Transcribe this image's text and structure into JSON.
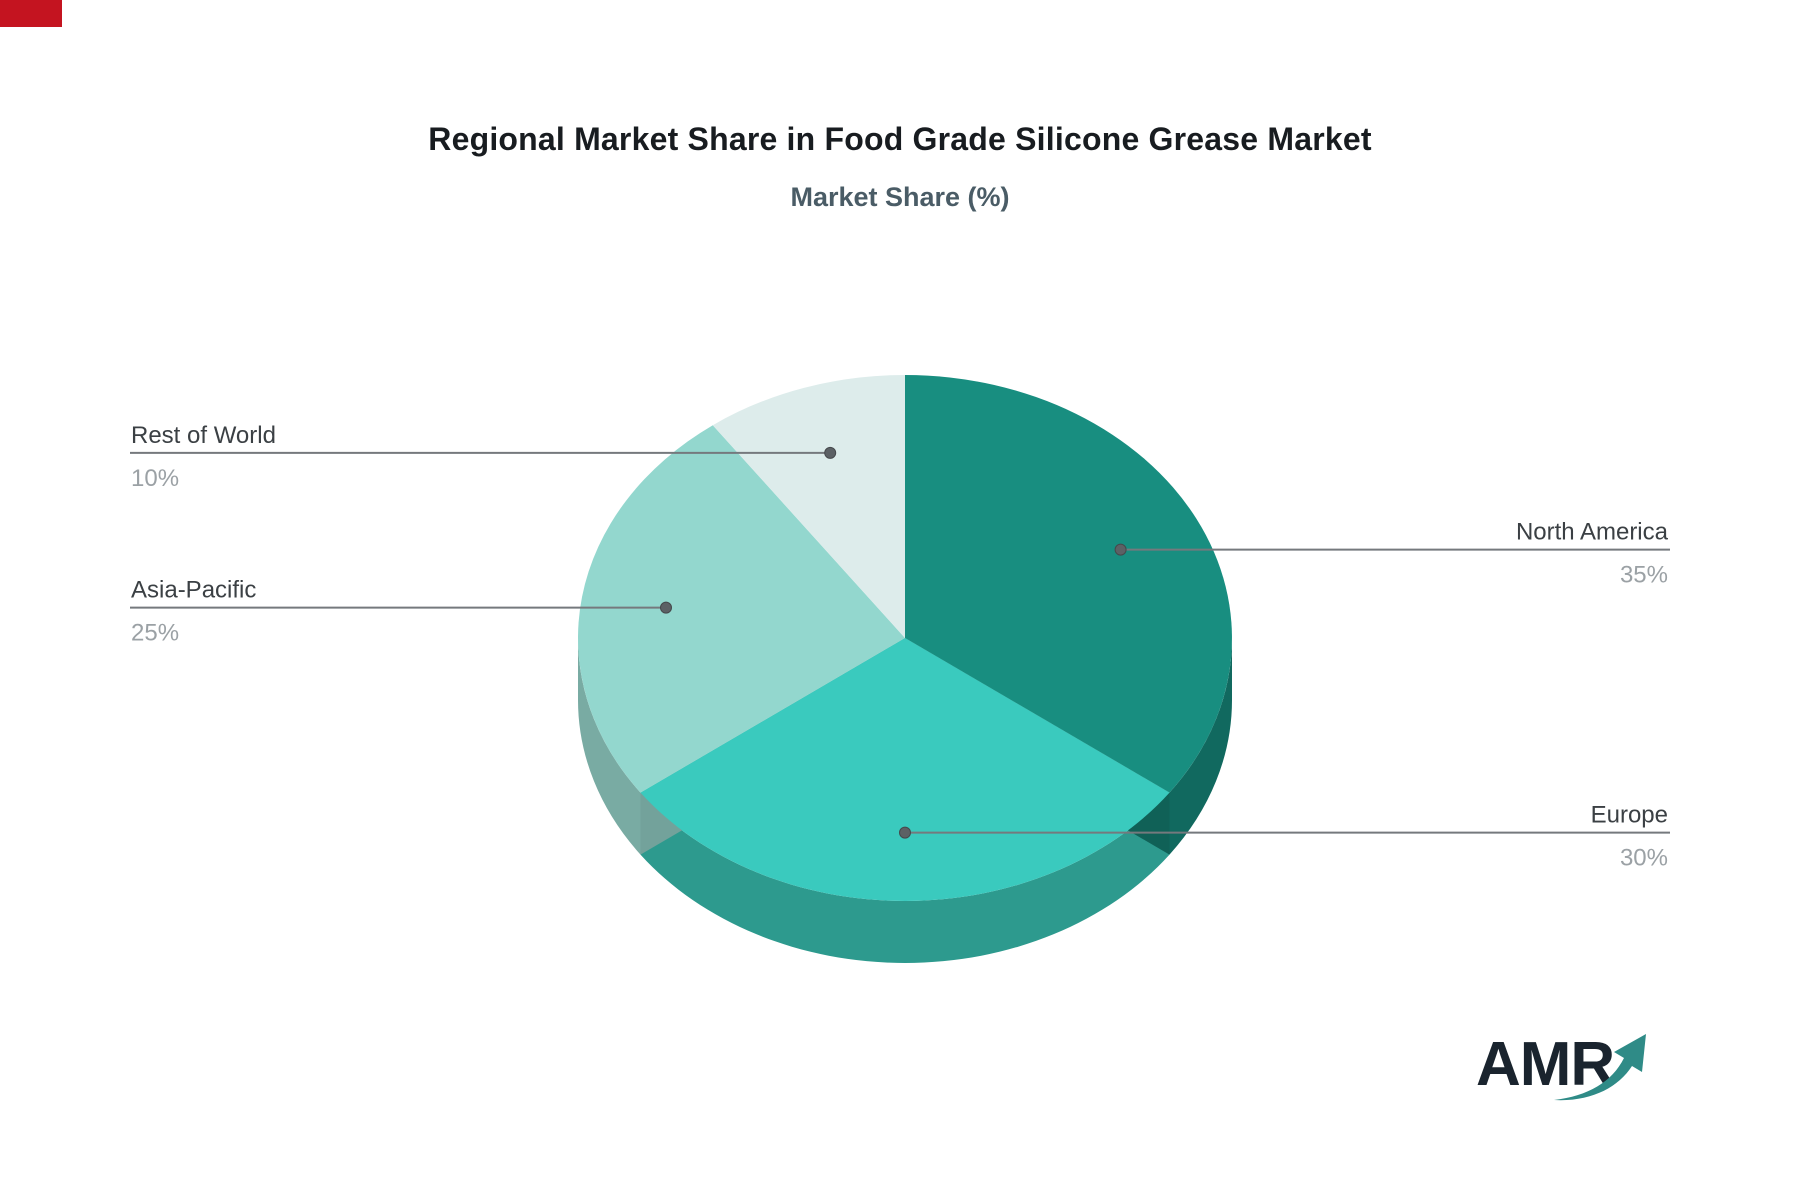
{
  "header": {
    "title": "Regional Market Share in Food Grade Silicone Grease Market",
    "subtitle": "Market Share (%)"
  },
  "chart_data": {
    "type": "pie",
    "style": "3d",
    "start_angle_deg": 0,
    "direction": "clockwise",
    "labels": [
      "North America",
      "Europe",
      "Asia-Pacific",
      "Rest of World"
    ],
    "values": [
      35,
      30,
      25,
      10
    ],
    "value_labels": [
      "35%",
      "30%",
      "25%",
      "10%"
    ],
    "colors": [
      "#188e80",
      "#3acabe",
      "#93d7ce",
      "#ddeceb"
    ],
    "side_colors": [
      "#11695f",
      "#2d9a8e",
      "#79aba3",
      "#bcd5d1"
    ],
    "leader_line_color": "#75797d",
    "leader_dot_color": "#5c6165",
    "label_name_color": "#3b4044",
    "label_value_color": "#9ba1a5",
    "legend_position": "callout-labels"
  },
  "logo": {
    "text": "AMR",
    "text_color": "#1a242e",
    "arrow_color": "#2f8b87"
  },
  "artifact": {
    "corner_color": "#c41420"
  }
}
